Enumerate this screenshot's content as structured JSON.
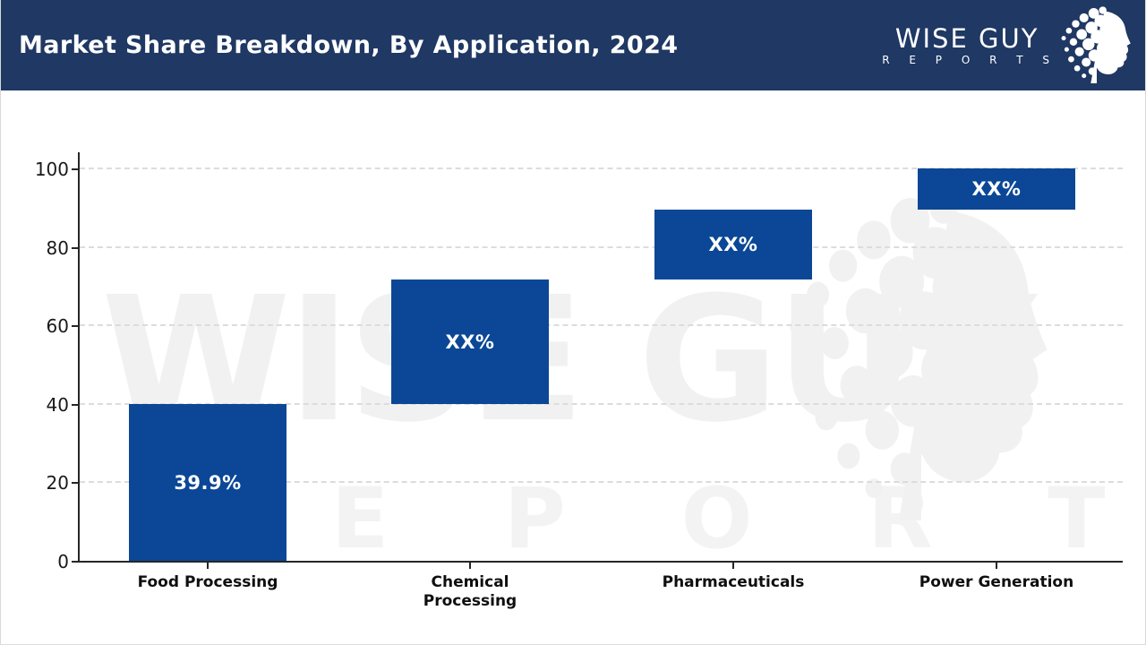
{
  "header": {
    "title": "Market Share Breakdown, By Application, 2024",
    "logo": {
      "line1": "WISE GUY",
      "line2": "R E P O R T S"
    }
  },
  "watermark": {
    "line1": "WISE GUY",
    "line2": "R E P O R T S"
  },
  "colors": {
    "header_bg": "#1f3864",
    "bar": "#0b4796",
    "bar_label": "#ffffff",
    "grid": "#dcdcdc",
    "axis": "#262626",
    "watermark": "#f1f1f1",
    "page_border": "#d9d9d9"
  },
  "chart_data": {
    "type": "bar",
    "subtype": "waterfall",
    "title": "Market Share Breakdown, By Application, 2024",
    "categories": [
      "Food Processing",
      "Chemical Processing",
      "Pharmaceuticals",
      "Power Generation"
    ],
    "category_display": [
      "Food Processing",
      "Chemical\nProcessing",
      "Pharmaceuticals",
      "Power Generation"
    ],
    "segments": [
      {
        "category": "Food Processing",
        "start": 0,
        "end": 39.9,
        "value_label": "39.9%"
      },
      {
        "category": "Chemical Processing",
        "start": 39.9,
        "end": 71.6,
        "value_label": "XX%"
      },
      {
        "category": "Pharmaceuticals",
        "start": 71.6,
        "end": 89.6,
        "value_label": "XX%"
      },
      {
        "category": "Power Generation",
        "start": 89.6,
        "end": 100,
        "value_label": "XX%"
      }
    ],
    "yticks": [
      0,
      20,
      40,
      60,
      80,
      100
    ],
    "ylim": [
      0,
      104.5
    ],
    "xlabel": "",
    "ylabel": "",
    "grid": "horizontal-dashed",
    "legend": null
  }
}
